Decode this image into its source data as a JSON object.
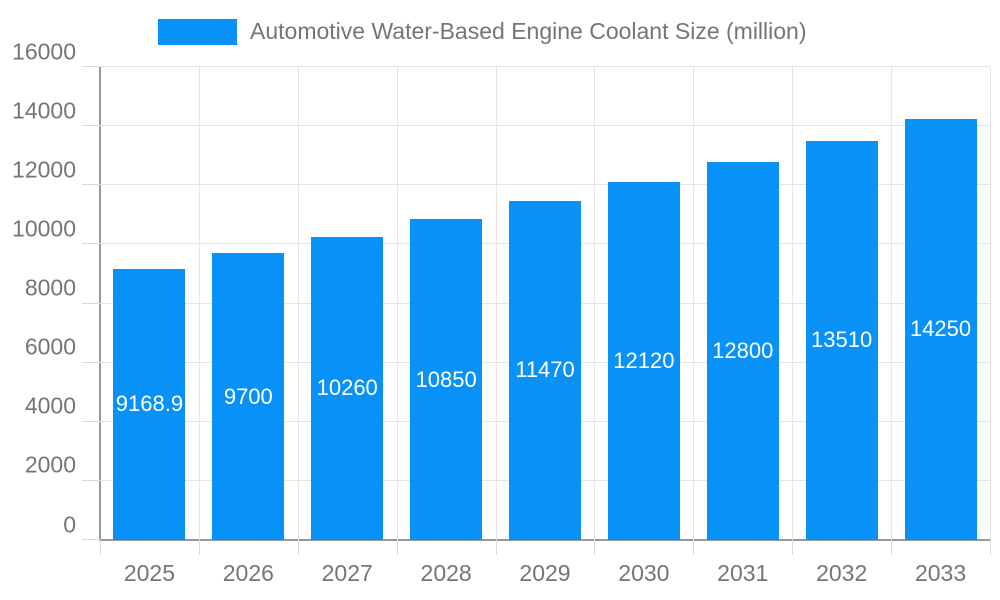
{
  "legend": {
    "label": "Automotive Water-Based Engine Coolant Size (million)"
  },
  "colors": {
    "bar": "#0892f8",
    "grid": "#e5e5e5",
    "axis": "#999999",
    "tick": "#d9d9d9",
    "text": "#757575",
    "value_label": "#ffffff"
  },
  "chart_data": {
    "type": "bar",
    "title": "Automotive Water-Based Engine Coolant Size (million)",
    "categories": [
      "2025",
      "2026",
      "2027",
      "2028",
      "2029",
      "2030",
      "2031",
      "2032",
      "2033"
    ],
    "values": [
      9168.9,
      9700,
      10260,
      10850,
      11470,
      12120,
      12800,
      13510,
      14250
    ],
    "value_labels": [
      "9168.9",
      "9700",
      "10260",
      "10850",
      "11470",
      "12120",
      "12800",
      "13510",
      "14250"
    ],
    "xlabel": "",
    "ylabel": "",
    "ylim": [
      0,
      16000
    ],
    "ytick_step": 2000,
    "ytick_labels": [
      "0",
      "2000",
      "4000",
      "6000",
      "8000",
      "10000",
      "12000",
      "14000",
      "16000"
    ],
    "grid": true,
    "legend_position": "top",
    "bar_fraction": 0.728
  }
}
